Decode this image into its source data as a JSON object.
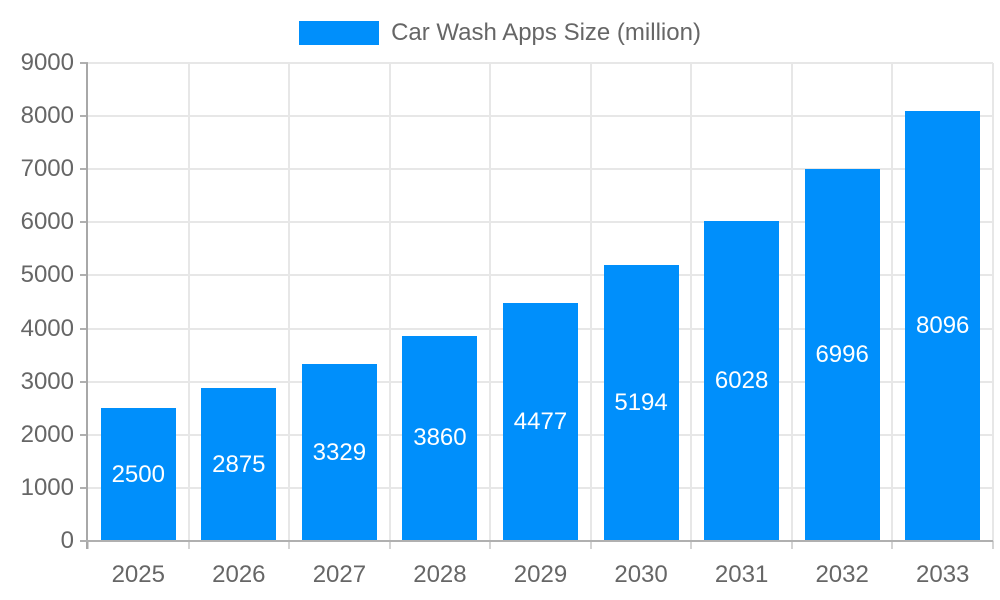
{
  "legend": {
    "label": "Car Wash Apps Size (million)"
  },
  "chart_data": {
    "type": "bar",
    "title": "Car Wash Apps Size (million)",
    "series_name": "Car Wash Apps Size (million)",
    "categories": [
      "2025",
      "2026",
      "2027",
      "2028",
      "2029",
      "2030",
      "2031",
      "2032",
      "2033"
    ],
    "values": [
      2500,
      2875,
      3329,
      3860,
      4477,
      5194,
      6028,
      6996,
      8096
    ],
    "xlabel": "",
    "ylabel": "",
    "ylim": [
      0,
      9000
    ],
    "yticks": [
      0,
      1000,
      2000,
      3000,
      4000,
      5000,
      6000,
      7000,
      8000,
      9000
    ],
    "grid": true,
    "legend_position": "top",
    "bar_color": "#008FFB",
    "bar_label_color": "#ffffff",
    "axis_label_color": "#666666",
    "gridline_color": "#e7e7e7"
  }
}
